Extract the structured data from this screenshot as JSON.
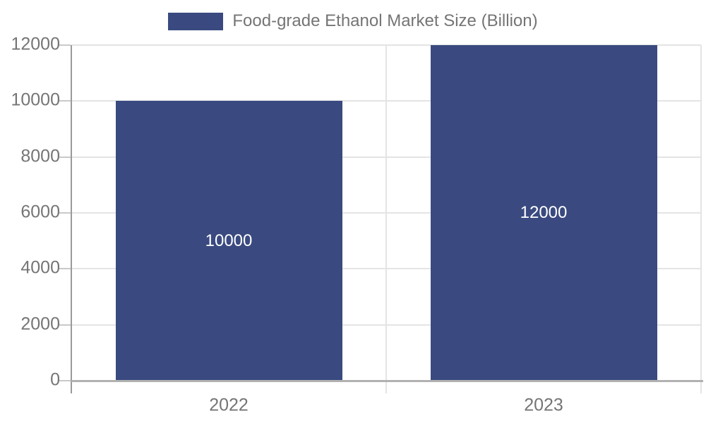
{
  "legend": {
    "label": "Food-grade Ethanol Market Size (Billion)"
  },
  "chart_data": {
    "type": "bar",
    "title": "Food-grade Ethanol Market Size (Billion)",
    "categories": [
      "2022",
      "2023"
    ],
    "series": [
      {
        "name": "Food-grade Ethanol Market Size (Billion)",
        "values": [
          10000,
          12000
        ]
      }
    ],
    "data_labels": [
      "10000",
      "12000"
    ],
    "xlabel": "",
    "ylabel": "",
    "ylim": [
      0,
      12000
    ],
    "ytick_step": 2000,
    "ytick_labels": [
      "0",
      "2000",
      "4000",
      "6000",
      "8000",
      "10000",
      "12000"
    ],
    "grid": true,
    "legend_position": "top"
  },
  "colors": {
    "bar": "#3A4A80",
    "axis_line": "#9a9a9a",
    "baseline": "#b1b1b1",
    "gridline": "#e4e4e4",
    "tick": "#c9c9c9",
    "text": "#757575",
    "value_label": "#ffffff",
    "background": "#ffffff"
  }
}
